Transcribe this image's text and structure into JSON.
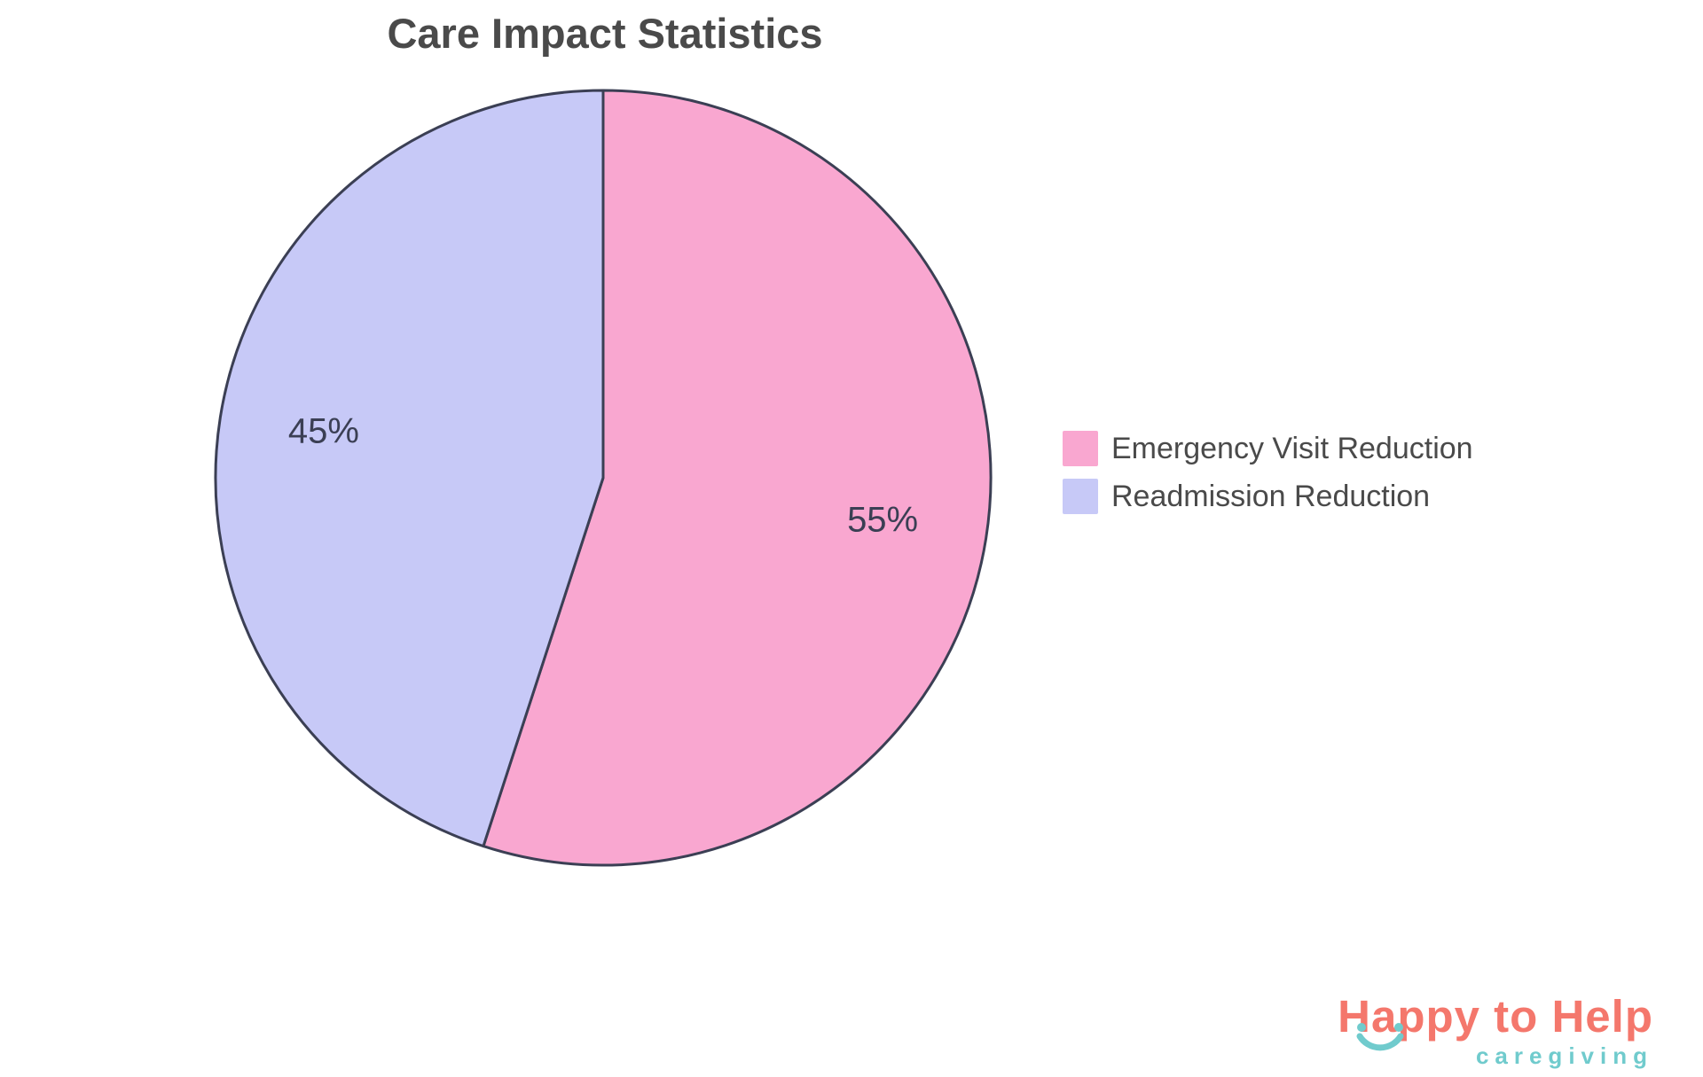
{
  "chart": {
    "title": "Care Impact Statistics"
  },
  "chart_data": {
    "type": "pie",
    "title": "Care Impact Statistics",
    "labels": [
      "Emergency Visit Reduction",
      "Readmission Reduction"
    ],
    "values": [
      55,
      45
    ],
    "percent_labels": [
      "55%",
      "45%"
    ],
    "colors": [
      "#f9a7d0",
      "#c7c9f7"
    ],
    "outline_color": "#3b3f54",
    "start_angle_deg": 0,
    "direction": "clockwise",
    "legend_position": "right",
    "data_label_color": "#3b3f54"
  },
  "legend": {
    "items": [
      {
        "label": "Emergency Visit Reduction",
        "color": "#f9a7d0"
      },
      {
        "label": "Readmission Reduction",
        "color": "#c7c9f7"
      }
    ]
  },
  "logo": {
    "title": "Happy to Help",
    "subtitle": "caregiving",
    "title_color": "#f4776c",
    "subtitle_color": "#70cbcd",
    "icon": "smiley-face-icon"
  }
}
